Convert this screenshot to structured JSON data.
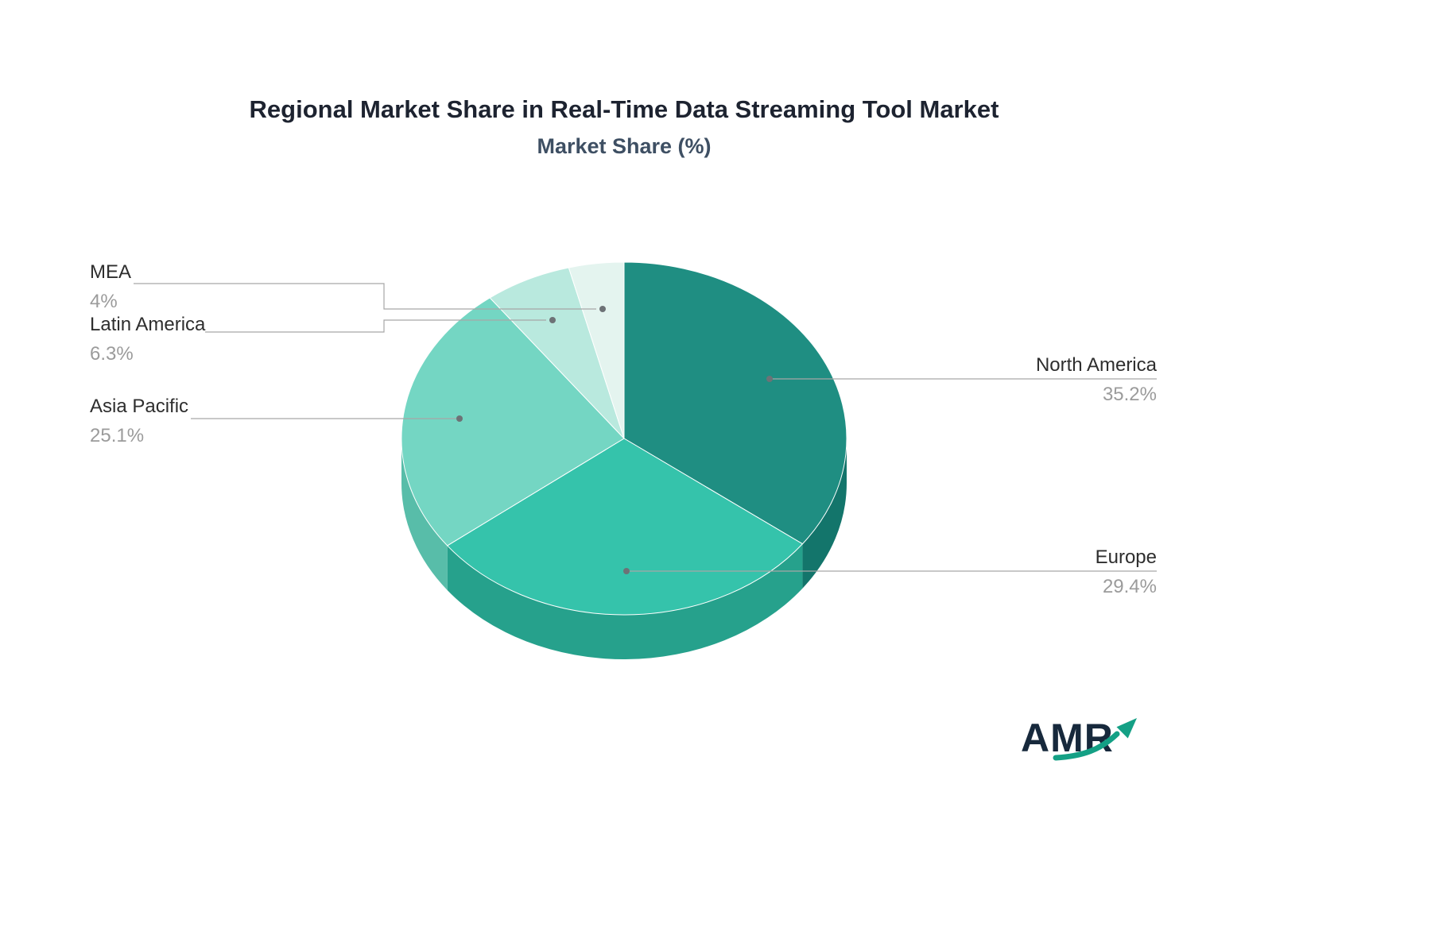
{
  "chart_data": {
    "type": "pie",
    "title": "Regional Market Share in Real-Time Data Streaming Tool Market",
    "subtitle": "Market Share (%)",
    "unit": "%",
    "legend_position": "none",
    "background": "#ffffff",
    "effect_3d": true,
    "slices": [
      {
        "id": "north-america",
        "label": "North America",
        "value": 35.2,
        "pct_label": "35.2%",
        "color": "#1f8e82",
        "side_color": "#13756b"
      },
      {
        "id": "europe",
        "label": "Europe",
        "value": 29.4,
        "pct_label": "29.4%",
        "color": "#35c3ab",
        "side_color": "#26a18c"
      },
      {
        "id": "asia-pacific",
        "label": "Asia Pacific",
        "value": 25.1,
        "pct_label": "25.1%",
        "color": "#74d6c3",
        "side_color": "#58bda9"
      },
      {
        "id": "latin-america",
        "label": "Latin America",
        "value": 6.3,
        "pct_label": "6.3%",
        "color": "#b9e9de",
        "side_color": "#99d6c8"
      },
      {
        "id": "mea",
        "label": "MEA",
        "value": 4.0,
        "pct_label": "4%",
        "color": "#e4f4ef",
        "side_color": "#c9e6df"
      }
    ],
    "label_color": "#2e2e2e",
    "value_color": "#9b9b9b",
    "leader_line_color": "#a6a6a6"
  },
  "logo": {
    "text": "AMR",
    "arrow_color": "#14a085"
  }
}
